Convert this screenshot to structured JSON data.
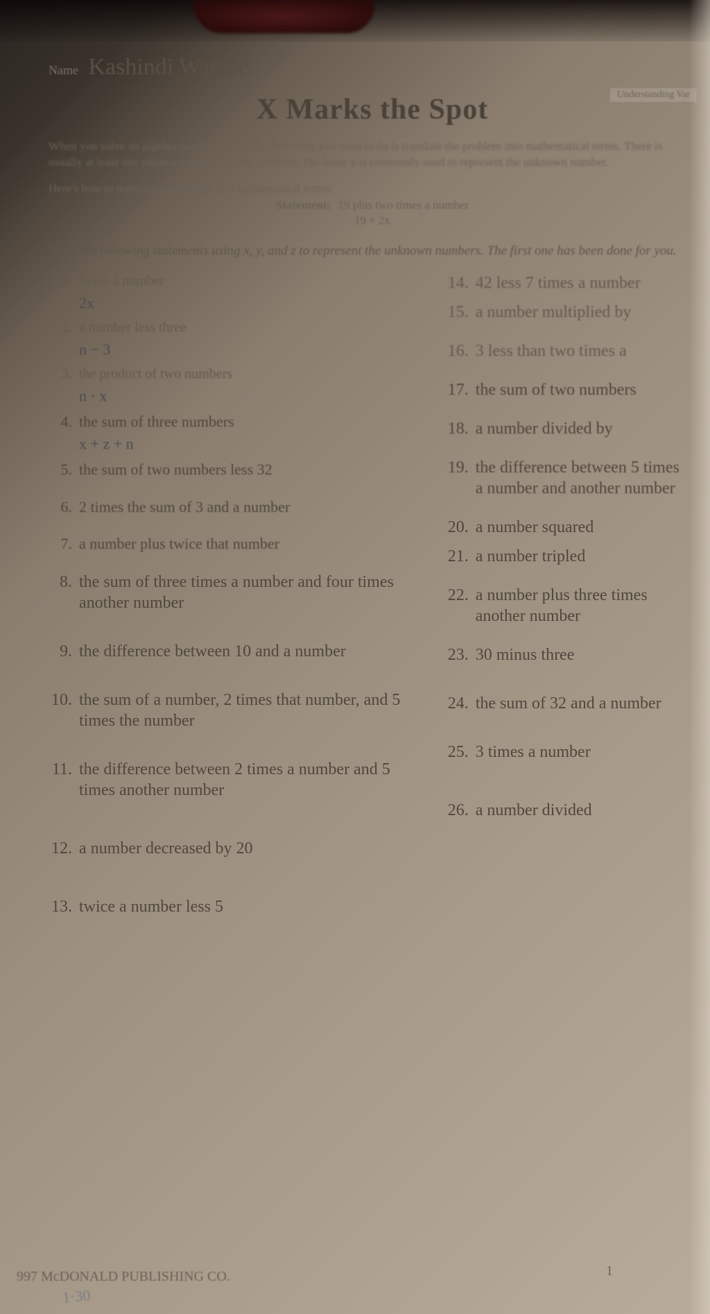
{
  "name_label": "Name",
  "student_name": "Kashindi  Wapale",
  "badge": "Understanding Var",
  "title": "X Marks the Spot",
  "intro": "When you solve an algebra word problem, the first thing you need to do is translate the problem into mathematical terms. There is usually at least one unknown number in the problem. The letter x is commonly used to represent the unknown number.",
  "example_lead": "Here's how to translate a statement into mathematical terms:",
  "statement_label": "Statement:",
  "statement_text": "19 plus two times a number",
  "statement_expr": "19 + 2x",
  "instructions": "Write the following statements using x, y, and z to represent the unknown numbers. The first one has been done for you.",
  "left": [
    {
      "n": "1.",
      "t": "twice a number",
      "hand": "2x",
      "cls": "blur-s"
    },
    {
      "n": "2.",
      "t": "a number less three",
      "hand": "n − 3",
      "cls": "blur-s"
    },
    {
      "n": "3.",
      "t": "the product of two numbers",
      "hand": "n · x",
      "cls": "blur-s"
    },
    {
      "n": "4.",
      "t": "the sum of three numbers",
      "hand": "x + z + n",
      "cls": "blur-m"
    },
    {
      "n": "5.",
      "t": "the sum of two numbers less 32",
      "cls": "blur-m"
    },
    {
      "n": "6.",
      "t": "2 times the sum of 3 and a number",
      "cls": "blur-m"
    },
    {
      "n": "7.",
      "t": "a number plus twice that number",
      "cls": "blur-m"
    },
    {
      "n": "8.",
      "t": "the sum of three times a number and four times another number",
      "cls": "blur-0"
    },
    {
      "n": "9.",
      "t": "the difference between 10 and a number",
      "cls": "blur-0"
    },
    {
      "n": "10.",
      "t": "the sum of a number, 2 times that number, and 5 times the number",
      "cls": "blur-0"
    },
    {
      "n": "11.",
      "t": "the difference between 2 times a number and 5 times another number",
      "cls": "blur-0"
    },
    {
      "n": "12.",
      "t": "a number decreased by 20",
      "cls": "blur-0"
    },
    {
      "n": "13.",
      "t": "twice a number less 5",
      "cls": "blur-0"
    }
  ],
  "right": [
    {
      "n": "14.",
      "t": "42 less 7 times a number",
      "cls": "blur-s"
    },
    {
      "n": "15.",
      "t": "a number multiplied by",
      "cls": "blur-s"
    },
    {
      "n": "16.",
      "t": "3 less than two times a",
      "cls": "blur-s"
    },
    {
      "n": "17.",
      "t": "the sum of two numbers",
      "cls": "blur-m"
    },
    {
      "n": "18.",
      "t": "a number divided by",
      "cls": "blur-m"
    },
    {
      "n": "19.",
      "t": "the difference between 5 times a number and another number",
      "cls": "blur-m"
    },
    {
      "n": "20.",
      "t": "a number squared",
      "cls": "blur-0"
    },
    {
      "n": "21.",
      "t": "a number tripled",
      "cls": "blur-0"
    },
    {
      "n": "22.",
      "t": "a number plus three times another number",
      "cls": "blur-0"
    },
    {
      "n": "23.",
      "t": "30 minus three",
      "cls": "blur-0"
    },
    {
      "n": "24.",
      "t": "the sum of 32 and a number",
      "cls": "blur-0"
    },
    {
      "n": "25.",
      "t": "3 times a number",
      "cls": "blur-0"
    },
    {
      "n": "26.",
      "t": "a number divided",
      "cls": "blur-0"
    }
  ],
  "footer": "997 McDONALD PUBLISHING CO.",
  "page_number": "1"
}
